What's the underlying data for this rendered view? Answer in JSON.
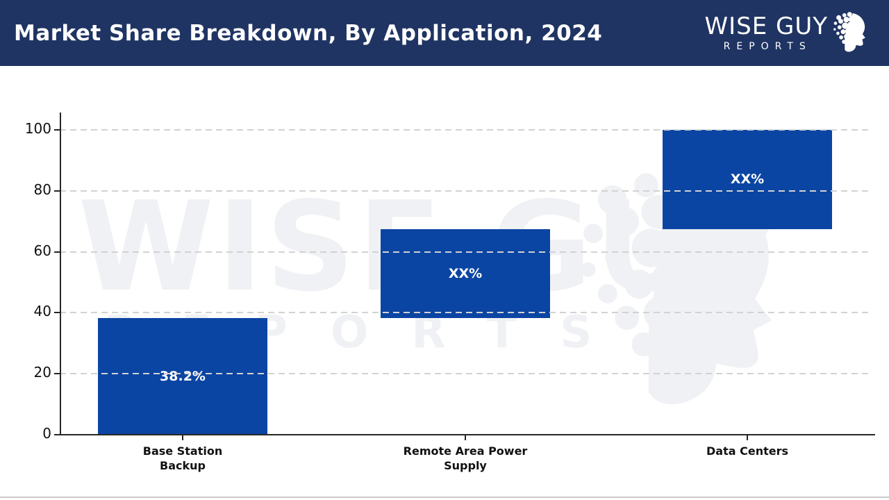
{
  "header": {
    "title": "Market Share Breakdown, By Application, 2024",
    "logo": {
      "name": "WISE GUY",
      "tagline": "REPORTS"
    }
  },
  "watermark": {
    "line1": "WISE GUY",
    "line2": "REPORTS"
  },
  "colors": {
    "header_bg": "#1f3463",
    "bar": "#0b45a3",
    "bar_label": "#ffffff",
    "grid": "#d2d2d2",
    "axis": "#262626",
    "tick_text": "#111111",
    "watermark": "#f0f1f4"
  },
  "chart_data": {
    "type": "bar",
    "subtype": "waterfall",
    "title": "Market Share Breakdown, By Application, 2024",
    "categories": [
      "Base Station Backup",
      "Remote Area Power Supply",
      "Data Centers"
    ],
    "category_lines": [
      [
        "Base Station",
        "Backup"
      ],
      [
        "Remote Area Power",
        "Supply"
      ],
      [
        "Data Centers"
      ]
    ],
    "series": [
      {
        "name": "Base Station Backup",
        "start": 0,
        "end": 38.2,
        "label": "38.2%"
      },
      {
        "name": "Remote Area Power Supply",
        "start": 38.2,
        "end": 67.5,
        "label": "XX%"
      },
      {
        "name": "Data Centers",
        "start": 67.5,
        "end": 100,
        "label": "XX%"
      }
    ],
    "xlabel": "",
    "ylabel": "",
    "yticks": [
      0,
      20,
      40,
      60,
      80,
      100
    ],
    "ylim": [
      0,
      106
    ],
    "grid": "horizontal-dashed-over-bars",
    "legend": "none"
  }
}
